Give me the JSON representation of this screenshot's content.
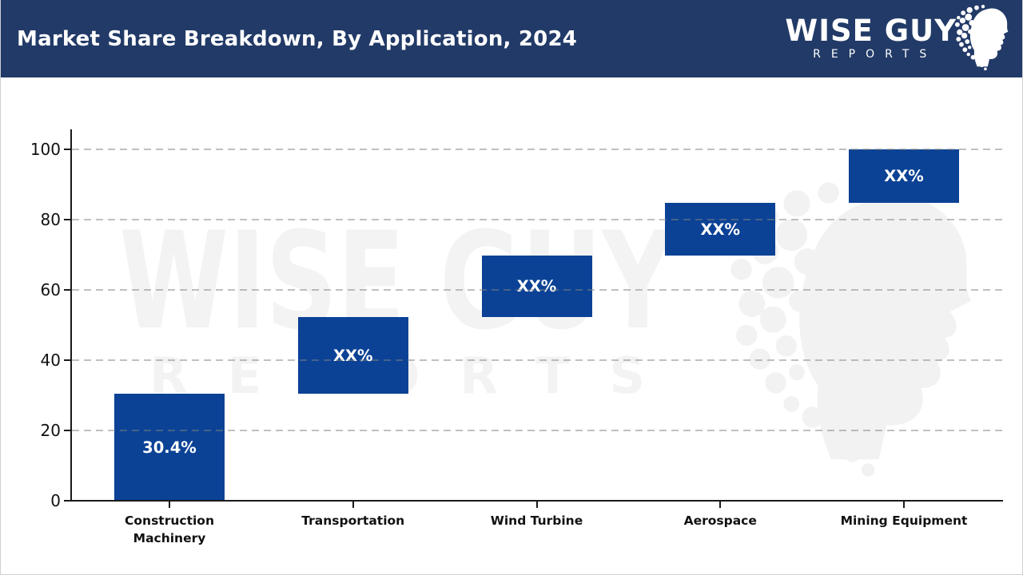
{
  "header": {
    "title": "Market Share Breakdown, By Application, 2024"
  },
  "logo": {
    "title": "WISE GUY",
    "subtitle": "REPORTS"
  },
  "watermark": {
    "line1": "WISE GUY",
    "line2": "REPORTS"
  },
  "chart_data": {
    "type": "bar",
    "subtype": "waterfall",
    "title": "Market Share Breakdown, By Application, 2024",
    "xlabel": "",
    "ylabel": "",
    "ylim": [
      0,
      105
    ],
    "yticks": [
      0,
      20,
      40,
      60,
      80,
      100
    ],
    "grid": true,
    "grid_style": "dashed",
    "bar_color": "#0b4295",
    "label_color": "#ffffff",
    "categories": [
      "Construction Machinery",
      "Transportation",
      "Wind Turbine",
      "Aerospace",
      "Mining Equipment"
    ],
    "segments": [
      {
        "category": "Construction Machinery",
        "start": 0,
        "end": 30.4,
        "value": 30.4,
        "label": "30.4%"
      },
      {
        "category": "Transportation",
        "start": 30.4,
        "end": 52.3,
        "value": 21.9,
        "label": "XX%"
      },
      {
        "category": "Wind Turbine",
        "start": 52.3,
        "end": 69.7,
        "value": 17.4,
        "label": "XX%"
      },
      {
        "category": "Aerospace",
        "start": 69.7,
        "end": 84.8,
        "value": 15.1,
        "label": "XX%"
      },
      {
        "category": "Mining Equipment",
        "start": 84.8,
        "end": 100,
        "value": 15.2,
        "label": "XX%"
      }
    ]
  }
}
